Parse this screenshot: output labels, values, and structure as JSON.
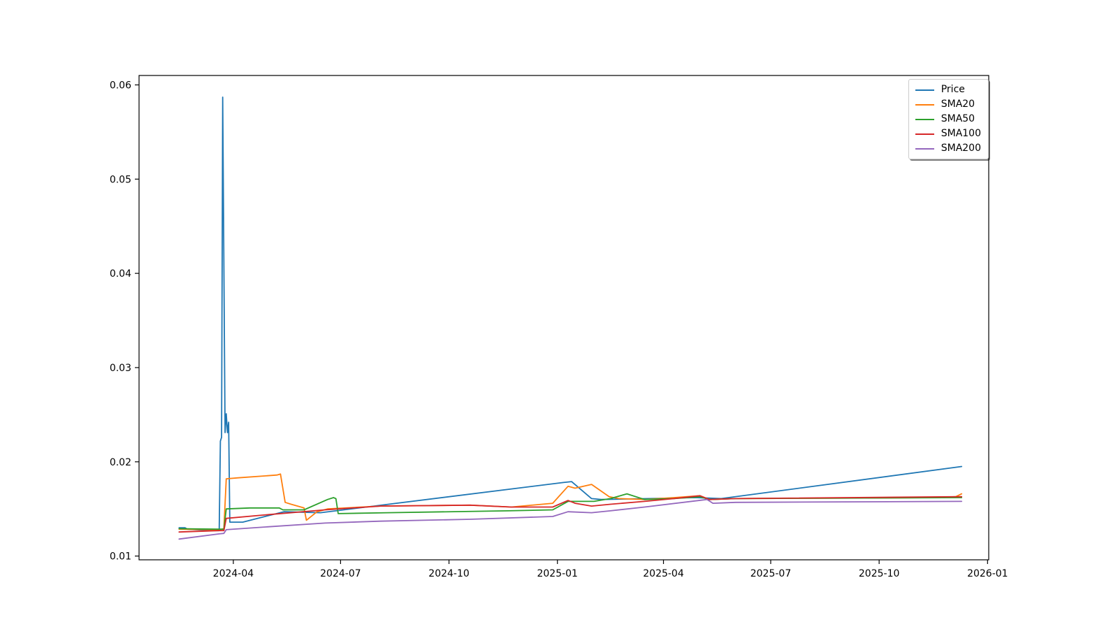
{
  "figure": {
    "background": "#ffffff",
    "spine_color": "#000000",
    "tick_color": "#000000",
    "tick_label_color": "#000000"
  },
  "legend": {
    "position": "upper-right",
    "border_color": "#cccccc",
    "items": [
      {
        "label": "Price",
        "color": "#1f77b4"
      },
      {
        "label": "SMA20",
        "color": "#ff7f0e"
      },
      {
        "label": "SMA50",
        "color": "#2ca02c"
      },
      {
        "label": "SMA100",
        "color": "#d62728"
      },
      {
        "label": "SMA200",
        "color": "#9467bd"
      }
    ]
  },
  "chart_data": {
    "type": "line",
    "title": "",
    "xlabel": "",
    "ylabel": "",
    "grid": false,
    "legend_position": "upper right",
    "x_axis": {
      "type": "date",
      "min": "2024-01-12",
      "max": "2026-01-02",
      "tick_dates": [
        "2024-04-01",
        "2024-07-01",
        "2024-10-01",
        "2025-01-01",
        "2025-04-01",
        "2025-07-01",
        "2025-10-01",
        "2026-01-01"
      ],
      "tick_labels": [
        "2024-04",
        "2024-07",
        "2024-10",
        "2025-01",
        "2025-04",
        "2025-07",
        "2025-10",
        "2026-01"
      ]
    },
    "y_axis": {
      "min": 0.0096,
      "max": 0.061,
      "ticks": [
        0.01,
        0.02,
        0.03,
        0.04,
        0.05,
        0.06
      ],
      "tick_labels": [
        "0.01",
        "0.02",
        "0.03",
        "0.04",
        "0.05",
        "0.06"
      ]
    },
    "series": [
      {
        "name": "Price",
        "color": "#1f77b4",
        "points": [
          [
            "2024-02-15",
            0.013
          ],
          [
            "2024-02-20",
            0.013
          ],
          [
            "2024-02-22",
            0.01285
          ],
          [
            "2024-03-16",
            0.0127
          ],
          [
            "2024-03-20",
            0.0127
          ],
          [
            "2024-03-21",
            0.0222
          ],
          [
            "2024-03-22",
            0.0226
          ],
          [
            "2024-03-23",
            0.0587
          ],
          [
            "2024-03-25",
            0.0231
          ],
          [
            "2024-03-26",
            0.0251
          ],
          [
            "2024-03-27",
            0.0231
          ],
          [
            "2024-03-28",
            0.0242
          ],
          [
            "2024-03-29",
            0.0136
          ],
          [
            "2024-04-09",
            0.0136
          ],
          [
            "2024-05-14",
            0.0147
          ],
          [
            "2024-06-14",
            0.0146
          ],
          [
            "2025-01-06",
            0.0178
          ],
          [
            "2025-01-13",
            0.0179
          ],
          [
            "2025-01-30",
            0.0161
          ],
          [
            "2025-02-07",
            0.016
          ],
          [
            "2025-03-20",
            0.0161
          ],
          [
            "2025-04-28",
            0.0162
          ],
          [
            "2025-05-20",
            0.0161
          ],
          [
            "2025-12-10",
            0.0195
          ]
        ]
      },
      {
        "name": "SMA20",
        "color": "#ff7f0e",
        "points": [
          [
            "2024-02-15",
            0.01285
          ],
          [
            "2024-03-20",
            0.0128
          ],
          [
            "2024-03-24",
            0.0129
          ],
          [
            "2024-03-26",
            0.0182
          ],
          [
            "2024-04-05",
            0.0183
          ],
          [
            "2024-05-08",
            0.0186
          ],
          [
            "2024-05-11",
            0.0187
          ],
          [
            "2024-05-15",
            0.0157
          ],
          [
            "2024-05-20",
            0.0155
          ],
          [
            "2024-05-31",
            0.0151
          ],
          [
            "2024-06-02",
            0.0138
          ],
          [
            "2024-06-11",
            0.0147
          ],
          [
            "2024-06-20",
            0.015
          ],
          [
            "2024-08-04",
            0.0153
          ],
          [
            "2024-10-19",
            0.0154
          ],
          [
            "2024-11-23",
            0.0152
          ],
          [
            "2024-12-28",
            0.0156
          ],
          [
            "2025-01-10",
            0.0174
          ],
          [
            "2025-01-16",
            0.0172
          ],
          [
            "2025-01-30",
            0.0176
          ],
          [
            "2025-02-14",
            0.0163
          ],
          [
            "2025-02-22",
            0.0161
          ],
          [
            "2025-03-16",
            0.016
          ],
          [
            "2025-04-10",
            0.0162
          ],
          [
            "2025-05-02",
            0.0164
          ],
          [
            "2025-05-10",
            0.016
          ],
          [
            "2025-06-01",
            0.0161
          ],
          [
            "2025-11-20",
            0.0162
          ],
          [
            "2025-12-05",
            0.0163
          ],
          [
            "2025-12-10",
            0.0166
          ]
        ]
      },
      {
        "name": "SMA50",
        "color": "#2ca02c",
        "points": [
          [
            "2024-02-15",
            0.0129
          ],
          [
            "2024-03-20",
            0.01285
          ],
          [
            "2024-03-24",
            0.01285
          ],
          [
            "2024-03-26",
            0.015
          ],
          [
            "2024-04-15",
            0.0151
          ],
          [
            "2024-05-10",
            0.0151
          ],
          [
            "2024-05-13",
            0.0149
          ],
          [
            "2024-05-31",
            0.0149
          ],
          [
            "2024-06-20",
            0.016
          ],
          [
            "2024-06-25",
            0.0162
          ],
          [
            "2024-06-27",
            0.0161
          ],
          [
            "2024-06-29",
            0.0145
          ],
          [
            "2024-08-10",
            0.0146
          ],
          [
            "2024-11-20",
            0.0148
          ],
          [
            "2024-12-28",
            0.0149
          ],
          [
            "2025-01-10",
            0.0158
          ],
          [
            "2025-02-01",
            0.0158
          ],
          [
            "2025-02-15",
            0.0161
          ],
          [
            "2025-03-01",
            0.0166
          ],
          [
            "2025-03-16",
            0.016
          ],
          [
            "2025-04-10",
            0.0161
          ],
          [
            "2025-05-02",
            0.0163
          ],
          [
            "2025-05-10",
            0.016
          ],
          [
            "2025-06-01",
            0.0161
          ],
          [
            "2025-12-10",
            0.0162
          ]
        ]
      },
      {
        "name": "SMA100",
        "color": "#d62728",
        "points": [
          [
            "2024-02-15",
            0.01255
          ],
          [
            "2024-03-20",
            0.0127
          ],
          [
            "2024-03-24",
            0.0127
          ],
          [
            "2024-03-26",
            0.014
          ],
          [
            "2024-05-01",
            0.0144
          ],
          [
            "2024-06-18",
            0.0149
          ],
          [
            "2024-08-04",
            0.0153
          ],
          [
            "2024-10-19",
            0.0154
          ],
          [
            "2024-11-23",
            0.0152
          ],
          [
            "2024-12-28",
            0.0152
          ],
          [
            "2025-01-10",
            0.0159
          ],
          [
            "2025-01-16",
            0.0156
          ],
          [
            "2025-01-30",
            0.0153
          ],
          [
            "2025-02-15",
            0.0155
          ],
          [
            "2025-03-16",
            0.0158
          ],
          [
            "2025-04-10",
            0.0161
          ],
          [
            "2025-05-02",
            0.0164
          ],
          [
            "2025-05-10",
            0.016
          ],
          [
            "2025-06-01",
            0.0161
          ],
          [
            "2025-12-10",
            0.0163
          ]
        ]
      },
      {
        "name": "SMA200",
        "color": "#9467bd",
        "points": [
          [
            "2024-02-15",
            0.0118
          ],
          [
            "2024-03-20",
            0.01235
          ],
          [
            "2024-03-24",
            0.0124
          ],
          [
            "2024-03-26",
            0.0128
          ],
          [
            "2024-04-30",
            0.0131
          ],
          [
            "2024-06-18",
            0.0135
          ],
          [
            "2024-08-04",
            0.0137
          ],
          [
            "2024-10-19",
            0.0139
          ],
          [
            "2024-12-28",
            0.0142
          ],
          [
            "2025-01-10",
            0.0147
          ],
          [
            "2025-01-30",
            0.0146
          ],
          [
            "2025-02-15",
            0.0148
          ],
          [
            "2025-03-16",
            0.0152
          ],
          [
            "2025-05-08",
            0.016
          ],
          [
            "2025-05-13",
            0.0156
          ],
          [
            "2025-06-01",
            0.0157
          ],
          [
            "2025-12-10",
            0.0158
          ]
        ]
      }
    ]
  }
}
